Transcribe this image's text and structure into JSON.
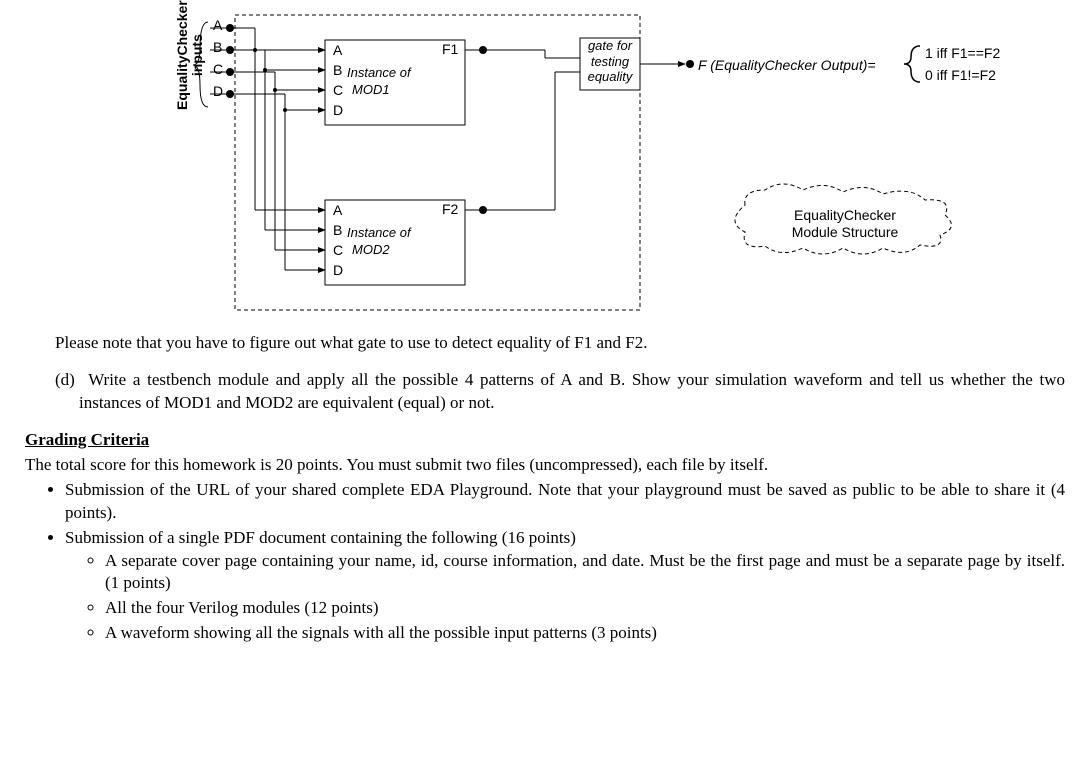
{
  "diagram": {
    "inputs_label": "EqualityChecker\ninputs",
    "pins": {
      "a": "A",
      "b": "B",
      "c": "C",
      "d": "D"
    },
    "mod1": {
      "a": "A",
      "b": "B",
      "c": "C",
      "d": "D",
      "out": "F1",
      "sub1": "Instance of",
      "sub2": "MOD1"
    },
    "mod2": {
      "a": "A",
      "b": "B",
      "c": "C",
      "d": "D",
      "out": "F2",
      "sub1": "Instance of",
      "sub2": "MOD2"
    },
    "gate_box": "gate for\ntesting\nequality",
    "output_eq": "F (EqualityChecker Output)=",
    "case1": "1 iff F1==F2",
    "case2": "0 iff F1!=F2",
    "cloud": "EqualityChecker\nModule Structure",
    "style": {
      "dash": "4,3",
      "stroke": "#000000",
      "fill": "#ffffff",
      "font": "Arial"
    }
  },
  "text": {
    "note": "Please note that you have to figure out what gate to use to detect equality of F1 and F2.",
    "item_d_label": "(d)",
    "item_d_body": "Write a testbench module and apply all the possible 4 patterns of A and B. Show your simulation waveform and tell us whether the two instances of MOD1 and MOD2 are equivalent (equal) or not.",
    "grading_heading": "Grading Criteria",
    "grading_intro": "The total score for this homework is 20 points. You must submit two files (uncompressed), each file by itself.",
    "bullet1": "Submission of the URL of your shared complete EDA Playground. Note that your playground must be saved as public to be able to share it (4 points).",
    "bullet2": "Submission of a single PDF document containing the following (16 points)",
    "sub1": "A separate cover page containing your name, id, course information, and date. Must be the first page and must be a separate page by itself. (1 points)",
    "sub2": "All the four Verilog modules (12 points)",
    "sub3": "A waveform showing all the signals with all the possible input patterns (3 points)"
  }
}
